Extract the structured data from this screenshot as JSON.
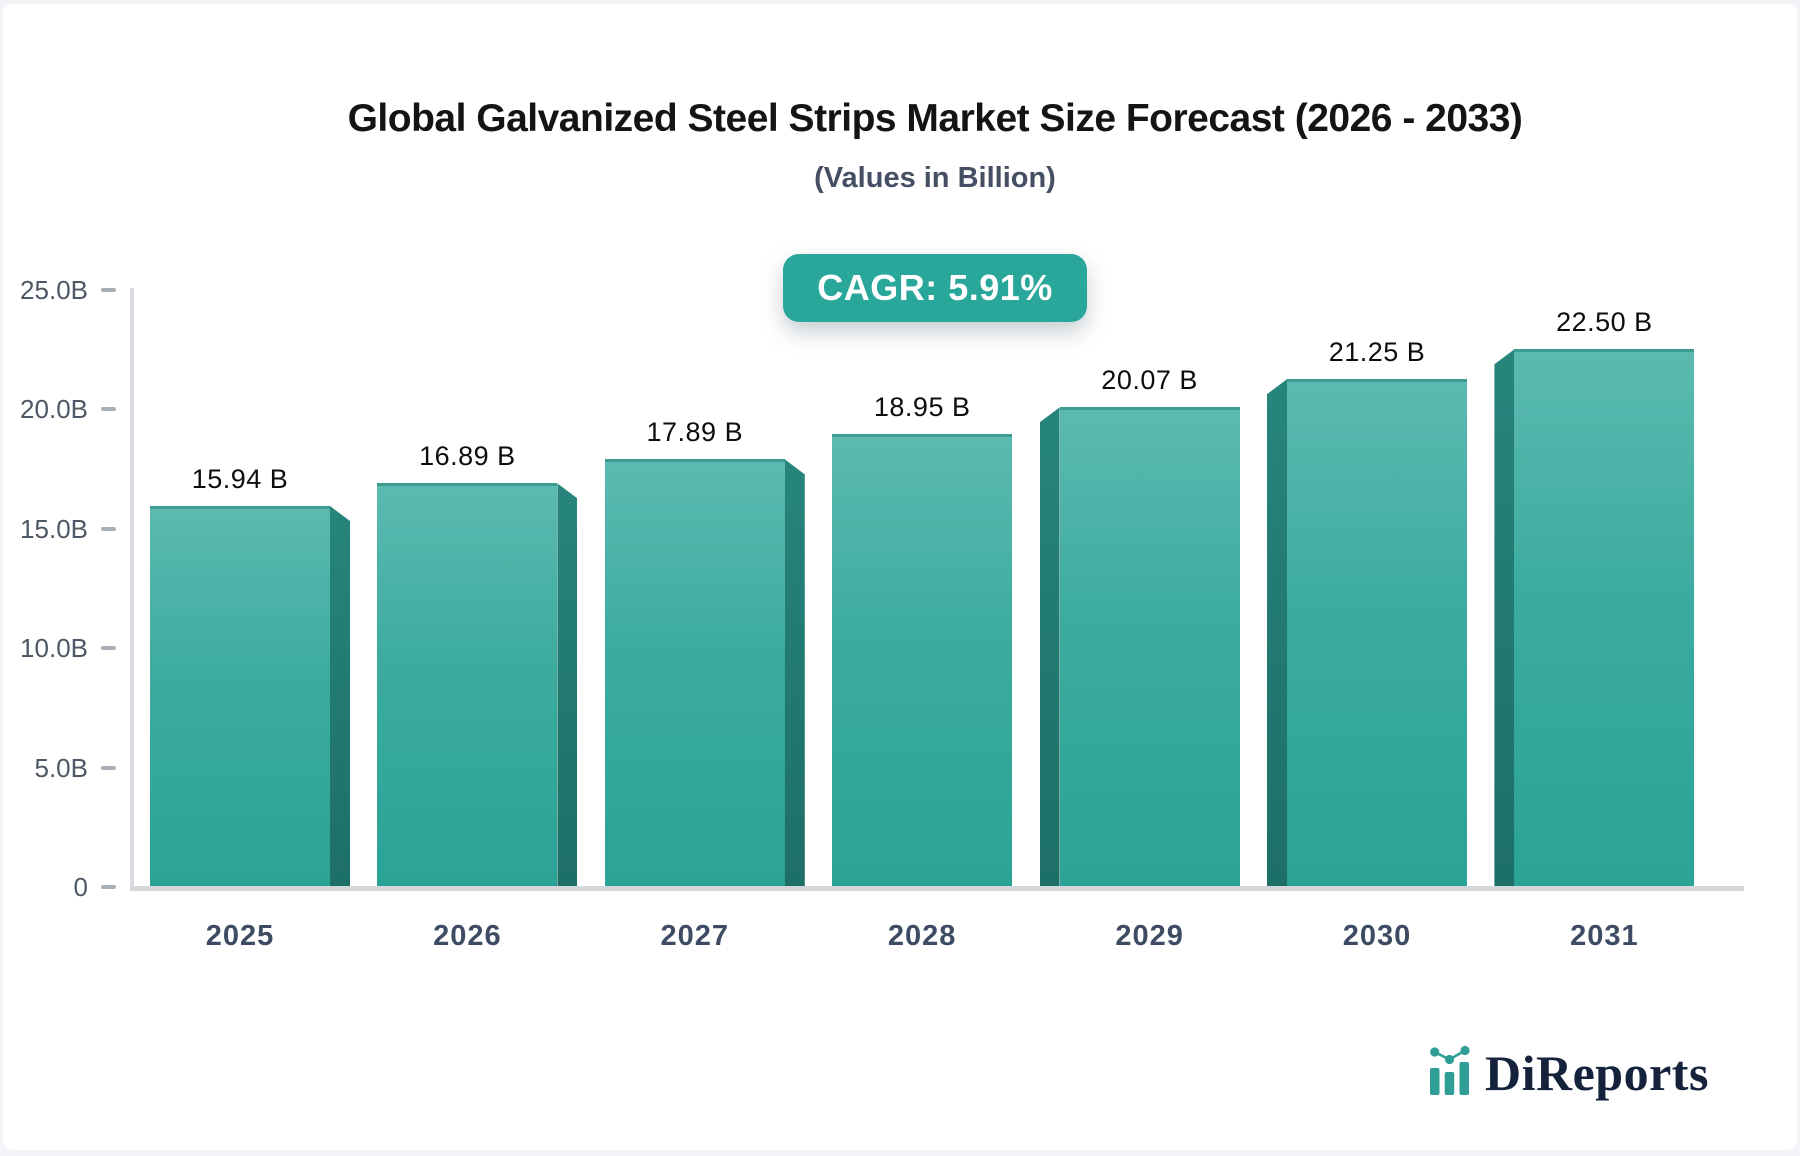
{
  "chart_data": {
    "type": "bar",
    "title": "Global Galvanized Steel Strips Market Size Forecast (2026 - 2033)",
    "subtitle": "(Values in Billion)",
    "cagr_label": "CAGR: 5.91%",
    "categories": [
      "2025",
      "2026",
      "2027",
      "2028",
      "2029",
      "2030",
      "2031"
    ],
    "values": [
      15.94,
      16.89,
      17.89,
      18.95,
      20.07,
      21.25,
      22.5
    ],
    "value_labels": [
      "15.94 B",
      "16.89 B",
      "17.89 B",
      "18.95 B",
      "20.07 B",
      "21.25 B",
      "22.50 B"
    ],
    "xlabel": "",
    "ylabel": "",
    "ylim": [
      0,
      25
    ],
    "yticks": [
      0,
      5,
      10,
      15,
      20,
      25
    ],
    "ytick_labels": [
      "0",
      "5.0B",
      "10.0B",
      "15.0B",
      "20.0B",
      "25.0B"
    ],
    "grid": false,
    "legend": null,
    "colors": {
      "bar_face_top": "#5bbab0",
      "bar_face_bottom": "#2aa396",
      "bar_side": "#1f7a71",
      "badge": "#2aa79b",
      "axis": "#d4d7db",
      "tick_label": "#4d5765",
      "category_label": "#3e4c63",
      "value_label": "#0b0d0f"
    }
  },
  "logo": {
    "text": "DiReports",
    "icon": "mini-bar-chart-icon",
    "text_color": "#15223b",
    "icon_color": "#2e9e96"
  }
}
